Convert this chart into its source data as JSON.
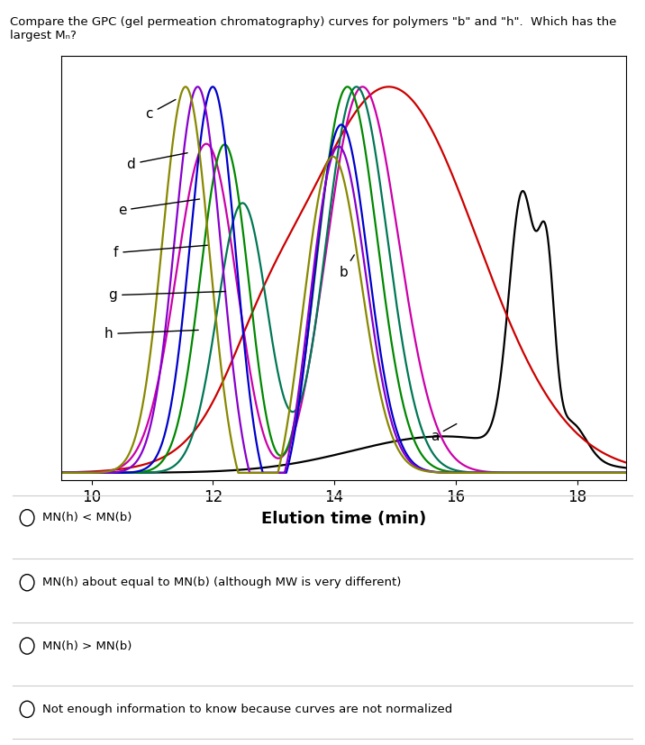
{
  "title_line1": "Compare the GPC (gel permeation chromatography) curves for polymers \"b\" and \"h\".  Which has the",
  "title_line2": "largest Mₙ?",
  "xlabel": "Elution time (min)",
  "xlim": [
    9.5,
    18.8
  ],
  "ylim": [
    -0.02,
    1.08
  ],
  "xticks": [
    10,
    12,
    14,
    16,
    18
  ],
  "curves": {
    "a": {
      "color": "#000000",
      "lw": 1.6
    },
    "b": {
      "color": "#cc0000",
      "lw": 1.6
    },
    "c": {
      "color": "#888800",
      "lw": 1.6
    },
    "d": {
      "color": "#8800cc",
      "lw": 1.6
    },
    "e": {
      "color": "#0000cc",
      "lw": 1.6
    },
    "f": {
      "color": "#008800",
      "lw": 1.6
    },
    "g": {
      "color": "#007755",
      "lw": 1.6
    },
    "h": {
      "color": "#cc00aa",
      "lw": 1.6
    }
  },
  "answer_options": [
    "MN(h) < MN(b)",
    "MN(h) about equal to MN(b) (although MW is very different)",
    "MN(h) > MN(b)",
    "Not enough information to know because curves are not normalized"
  ],
  "fig_width": 7.16,
  "fig_height": 8.27
}
